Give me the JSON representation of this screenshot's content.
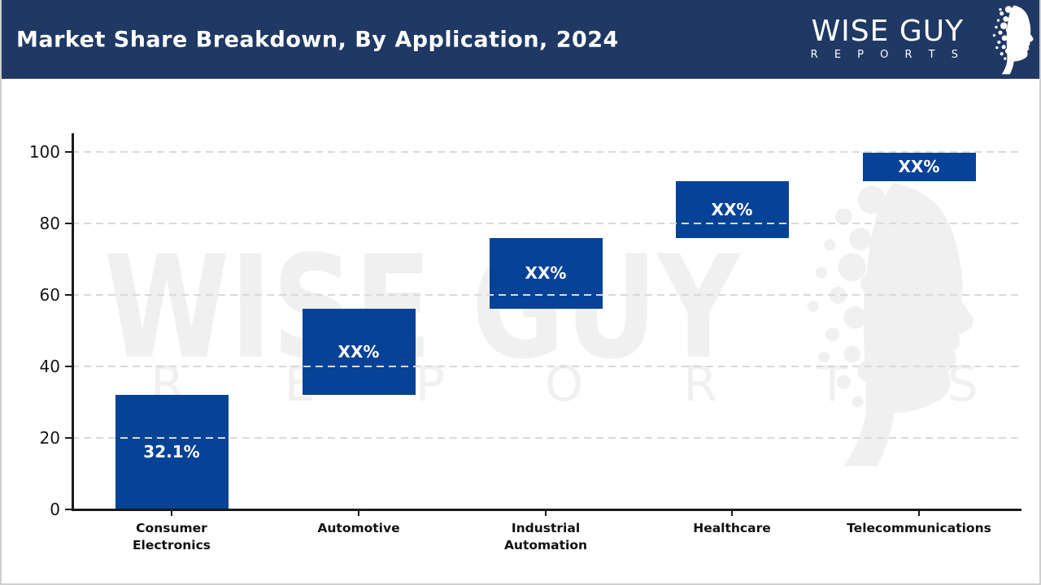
{
  "header": {
    "title": "Market Share Breakdown, By Application, 2024",
    "background": "#1f3864",
    "logo": {
      "line1": "WISE GUY",
      "line2": "R E P O R T S"
    }
  },
  "watermark": {
    "line1": "WISE GUY",
    "line2": "R E P O R T S"
  },
  "chart_data": {
    "type": "bar",
    "subtype": "waterfall",
    "title": "Market Share Breakdown, By Application, 2024",
    "xlabel": "",
    "ylabel": "",
    "ylim": [
      0,
      100
    ],
    "yticks": [
      0,
      20,
      40,
      60,
      80,
      100
    ],
    "grid": true,
    "gridline_color": "#d9d9d9",
    "bar_color": "#064296",
    "value_label_color": "#ffffff",
    "categories": [
      "Consumer Electronics",
      "Automotive",
      "Industrial Automation",
      "Healthcare",
      "Telecommunications"
    ],
    "category_label_lines": [
      [
        "Consumer",
        "Electronics"
      ],
      [
        "Automotive"
      ],
      [
        "Industrial",
        "Automation"
      ],
      [
        "Healthcare"
      ],
      [
        "Telecommunications"
      ]
    ],
    "segments": [
      {
        "category": "Consumer Electronics",
        "start": 0,
        "end": 32.1,
        "label": "32.1%"
      },
      {
        "category": "Automotive",
        "start": 32.1,
        "end": 56.2,
        "label": "XX%"
      },
      {
        "category": "Industrial Automation",
        "start": 56.2,
        "end": 76.0,
        "label": "XX%"
      },
      {
        "category": "Healthcare",
        "start": 76.0,
        "end": 91.9,
        "label": "XX%"
      },
      {
        "category": "Telecommunications",
        "start": 91.9,
        "end": 99.8,
        "label": "XX%"
      }
    ]
  }
}
